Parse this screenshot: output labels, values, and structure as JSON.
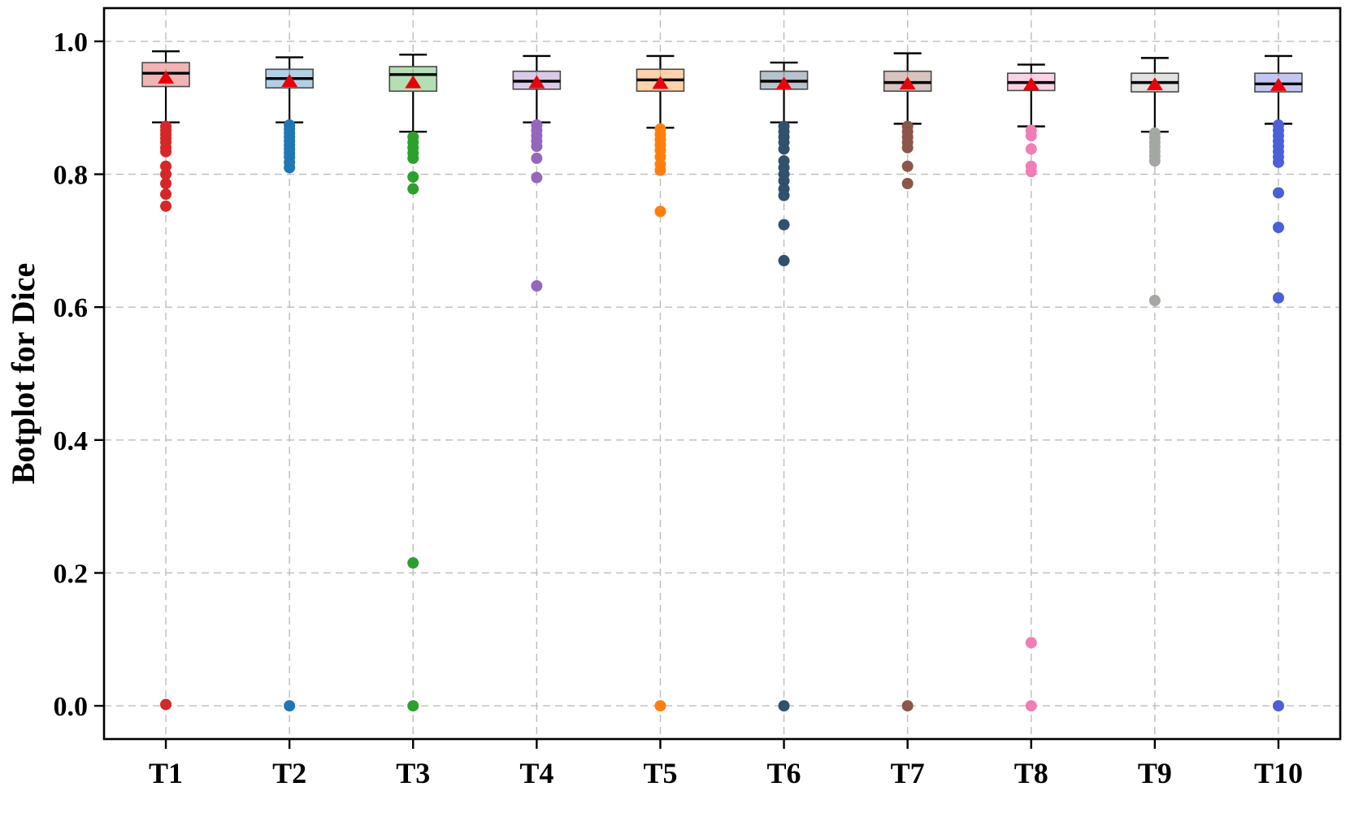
{
  "chart_data": {
    "type": "box",
    "title": "",
    "xlabel": "",
    "ylabel": "Botplot for Dice",
    "ylim": [
      -0.05,
      1.05
    ],
    "yticks": [
      0.0,
      0.2,
      0.4,
      0.6,
      0.8,
      1.0
    ],
    "ytick_labels": [
      "0.0",
      "0.2",
      "0.4",
      "0.6",
      "0.8",
      "1.0"
    ],
    "grid": "dashed-both-axes",
    "legend": "none",
    "mean_marker": "red-triangle",
    "mean_marker_color": "#e8000b",
    "box_edge_color": "#4a4a4a",
    "median_color": "#000000",
    "whisker_color": "#000000",
    "categories": [
      "T1",
      "T2",
      "T3",
      "T4",
      "T5",
      "T6",
      "T7",
      "T8",
      "T9",
      "T10"
    ],
    "series": [
      {
        "name": "T1",
        "color": "#d62728",
        "whisker_low": 0.878,
        "q1": 0.932,
        "median": 0.952,
        "q3": 0.968,
        "whisker_high": 0.985,
        "mean": 0.945,
        "outliers": [
          0.872,
          0.866,
          0.86,
          0.854,
          0.848,
          0.84,
          0.834,
          0.812,
          0.8,
          0.786,
          0.77,
          0.752,
          0.002
        ]
      },
      {
        "name": "T2",
        "color": "#1f77b4",
        "whisker_low": 0.878,
        "q1": 0.93,
        "median": 0.944,
        "q3": 0.958,
        "whisker_high": 0.976,
        "mean": 0.94,
        "outliers": [
          0.874,
          0.868,
          0.862,
          0.856,
          0.85,
          0.844,
          0.838,
          0.832,
          0.826,
          0.818,
          0.81,
          0.0
        ]
      },
      {
        "name": "T3",
        "color": "#2ca02c",
        "whisker_low": 0.864,
        "q1": 0.925,
        "median": 0.95,
        "q3": 0.962,
        "whisker_high": 0.98,
        "mean": 0.938,
        "outliers": [
          0.856,
          0.848,
          0.84,
          0.832,
          0.824,
          0.796,
          0.778,
          0.215,
          0.0
        ]
      },
      {
        "name": "T4",
        "color": "#9467bd",
        "whisker_low": 0.878,
        "q1": 0.928,
        "median": 0.94,
        "q3": 0.955,
        "whisker_high": 0.978,
        "mean": 0.938,
        "outliers": [
          0.874,
          0.866,
          0.858,
          0.85,
          0.842,
          0.824,
          0.795,
          0.632
        ]
      },
      {
        "name": "T5",
        "color": "#ff7f0e",
        "whisker_low": 0.87,
        "q1": 0.925,
        "median": 0.942,
        "q3": 0.958,
        "whisker_high": 0.978,
        "mean": 0.937,
        "outliers": [
          0.868,
          0.86,
          0.852,
          0.844,
          0.836,
          0.826,
          0.815,
          0.806,
          0.744,
          0.0
        ]
      },
      {
        "name": "T6",
        "color": "#31506d",
        "whisker_low": 0.878,
        "q1": 0.928,
        "median": 0.94,
        "q3": 0.955,
        "whisker_high": 0.968,
        "mean": 0.936,
        "outliers": [
          0.872,
          0.864,
          0.856,
          0.848,
          0.838,
          0.82,
          0.81,
          0.8,
          0.79,
          0.778,
          0.768,
          0.724,
          0.67,
          0.0
        ]
      },
      {
        "name": "T7",
        "color": "#8c564b",
        "whisker_low": 0.876,
        "q1": 0.925,
        "median": 0.938,
        "q3": 0.955,
        "whisker_high": 0.982,
        "mean": 0.936,
        "outliers": [
          0.872,
          0.864,
          0.856,
          0.848,
          0.84,
          0.812,
          0.786,
          0.0
        ]
      },
      {
        "name": "T8",
        "color": "#f07eb5",
        "whisker_low": 0.872,
        "q1": 0.926,
        "median": 0.938,
        "q3": 0.952,
        "whisker_high": 0.965,
        "mean": 0.935,
        "outliers": [
          0.866,
          0.858,
          0.838,
          0.812,
          0.804,
          0.095,
          0.0
        ]
      },
      {
        "name": "T9",
        "color": "#a3a8a3",
        "whisker_low": 0.864,
        "q1": 0.924,
        "median": 0.938,
        "q3": 0.952,
        "whisker_high": 0.975,
        "mean": 0.935,
        "outliers": [
          0.862,
          0.855,
          0.848,
          0.841,
          0.834,
          0.827,
          0.82,
          0.61
        ]
      },
      {
        "name": "T10",
        "color": "#4c5fd6",
        "whisker_low": 0.876,
        "q1": 0.924,
        "median": 0.936,
        "q3": 0.952,
        "whisker_high": 0.978,
        "mean": 0.934,
        "outliers": [
          0.874,
          0.866,
          0.858,
          0.85,
          0.842,
          0.834,
          0.826,
          0.818,
          0.772,
          0.72,
          0.614,
          0.0
        ]
      }
    ]
  }
}
